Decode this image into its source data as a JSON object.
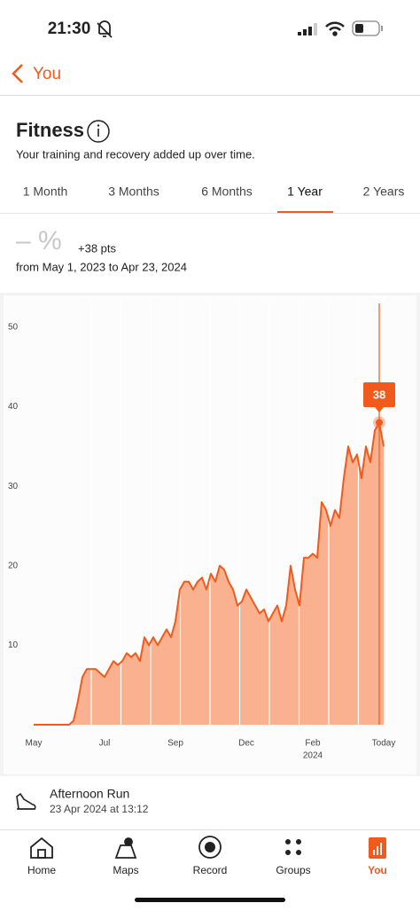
{
  "status_bar": {
    "time": "21:30"
  },
  "nav": {
    "back": "You"
  },
  "header": {
    "title": "Fitness",
    "subtitle": "Your training and recovery added up over time."
  },
  "tabs": {
    "items": [
      "1 Month",
      "3 Months",
      "6 Months",
      "1 Year",
      "2 Years"
    ],
    "selected": 3
  },
  "summary": {
    "percent": "– %",
    "change": "+38 pts",
    "range": "from May 1, 2023 to Apr 23, 2024"
  },
  "chart_data": {
    "type": "area",
    "color": "#f05a1c",
    "fill": "#f9b18f",
    "values": [
      0,
      0,
      0,
      0,
      0,
      0,
      0,
      0,
      0,
      0.5,
      3,
      6,
      7,
      7,
      7,
      6.5,
      6,
      7,
      8,
      7.5,
      8,
      9,
      8.5,
      9,
      8,
      11,
      10,
      11,
      10,
      11,
      12,
      11,
      13,
      17,
      18,
      18,
      17,
      18,
      18.5,
      17,
      19,
      18,
      20,
      19.5,
      18,
      17,
      15,
      15.5,
      17,
      16,
      15,
      14,
      14.5,
      13,
      14,
      15,
      13,
      15,
      20,
      17,
      15,
      21,
      21,
      21.5,
      21,
      28,
      27,
      25,
      27,
      26,
      31,
      35,
      33,
      34,
      31,
      35,
      33,
      37,
      38,
      35
    ],
    "xlim": [
      0,
      79
    ],
    "xticks": [
      {
        "value": 0,
        "label": "May"
      },
      {
        "value": 16,
        "label": "Jul"
      },
      {
        "value": 32,
        "label": "Sep"
      },
      {
        "value": 48,
        "label": "Dec"
      },
      {
        "value": 63,
        "label": "Feb"
      },
      {
        "value": 79,
        "label": "Today"
      }
    ],
    "year_label": "2024",
    "ylim": [
      0,
      53
    ],
    "yticks": [
      10,
      20,
      30,
      40,
      50
    ],
    "highlight_index": 78
  },
  "activity": {
    "name": "Afternoon Run",
    "time": "23 Apr 2024 at 13:12"
  },
  "tab_bar": {
    "items": [
      "Home",
      "Maps",
      "Record",
      "Groups",
      "You"
    ],
    "selected": 4
  }
}
